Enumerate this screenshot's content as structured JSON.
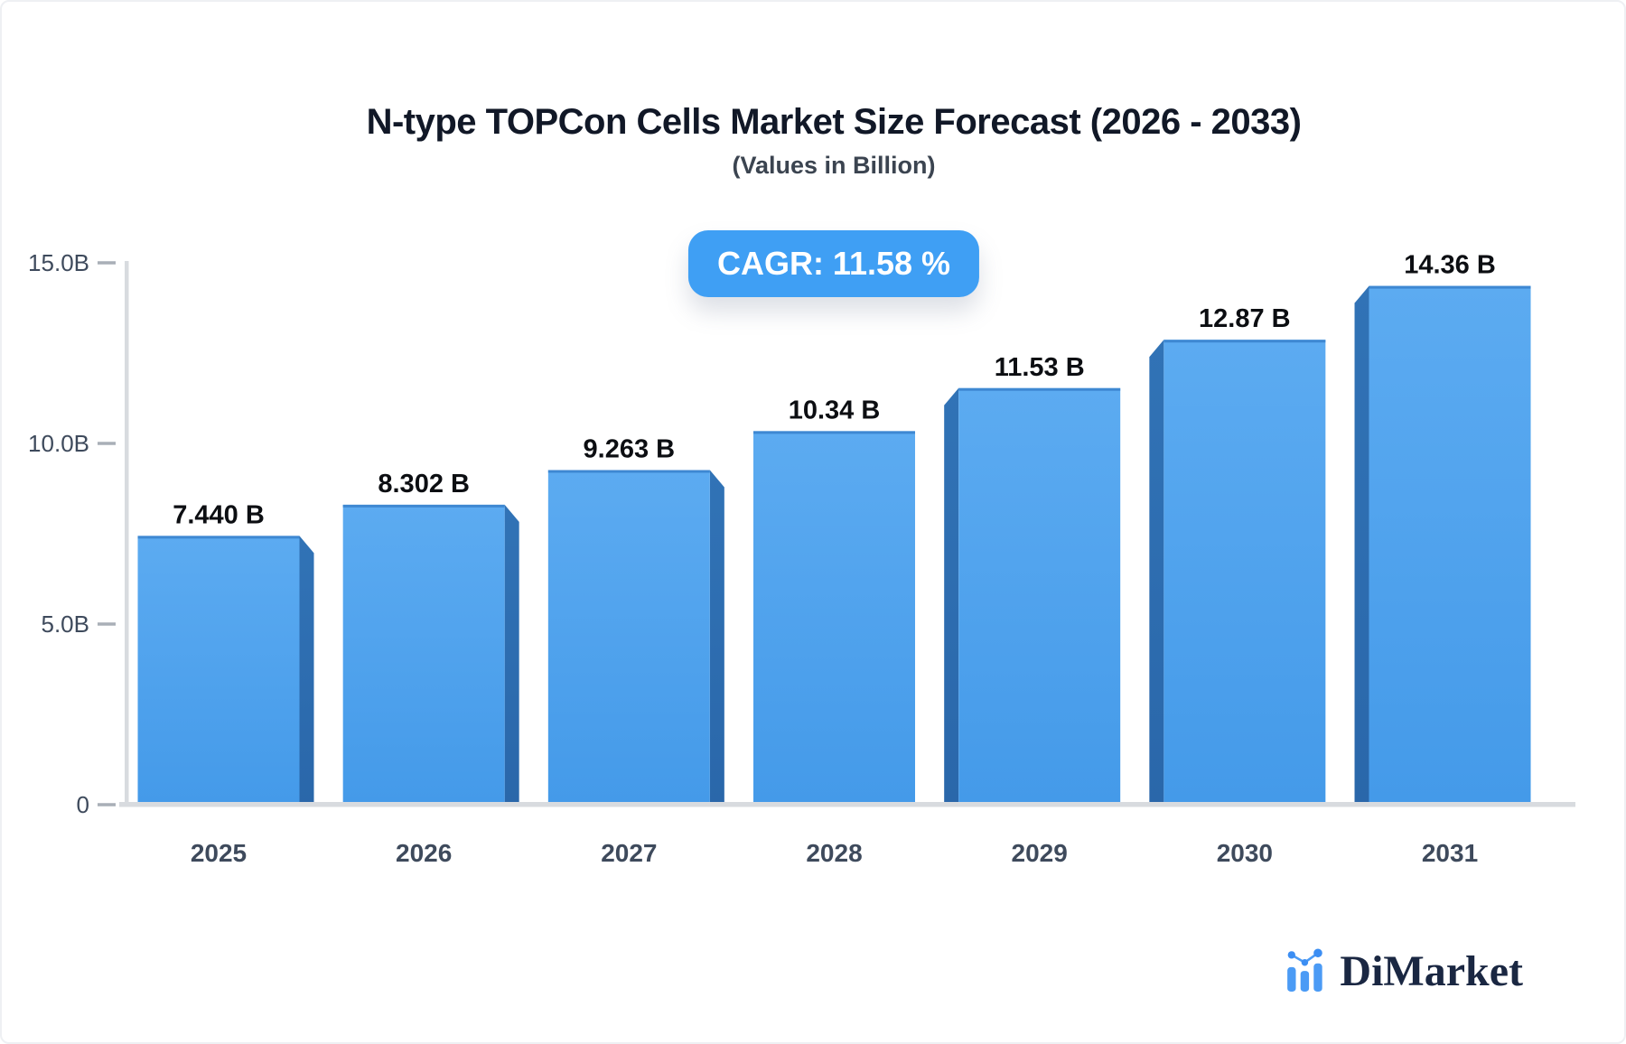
{
  "chart_data": {
    "type": "bar",
    "title": "N-type TOPCon Cells Market Size Forecast (2026 - 2033)",
    "subtitle": "(Values in Billion)",
    "annotation": "CAGR: 11.58 %",
    "categories": [
      "2025",
      "2026",
      "2027",
      "2028",
      "2029",
      "2030",
      "2031"
    ],
    "values": [
      7.44,
      8.302,
      9.263,
      10.34,
      11.53,
      12.87,
      14.36
    ],
    "value_labels": [
      "7.440 B",
      "8.302 B",
      "9.263 B",
      "10.34 B",
      "11.53 B",
      "12.87 B",
      "14.36 B"
    ],
    "unit": "Billion",
    "xlabel": "",
    "ylabel": "",
    "ylim": [
      0,
      15
    ],
    "yticks": [
      {
        "value": 0,
        "label": "0"
      },
      {
        "value": 5,
        "label": "5.0B"
      },
      {
        "value": 10,
        "label": "10.0B"
      },
      {
        "value": 15,
        "label": "15.0B"
      }
    ],
    "grid": false,
    "legend": false,
    "colors": {
      "bar_face_top": "#5cabf1",
      "bar_face_bottom": "#449ae9",
      "bar_top_edge": "#3e88d2",
      "bar_side_top": "#3173b6",
      "bar_side_bottom": "#2a67aa",
      "badge_bg": "#3f9ff4",
      "badge_text": "#ffffff",
      "axis": "#d8dbdf",
      "tick_dash": "#a9afb7",
      "tick_text": "#3e4a5c",
      "value_text": "#0c0e12",
      "title_text": "#111827",
      "subtitle_text": "#3b4450"
    }
  },
  "logo": {
    "text": "DiMarket",
    "icon": "mini-bar-chart-icon",
    "text_color": "#1a2742",
    "icon_color": "#4b9bf5"
  }
}
